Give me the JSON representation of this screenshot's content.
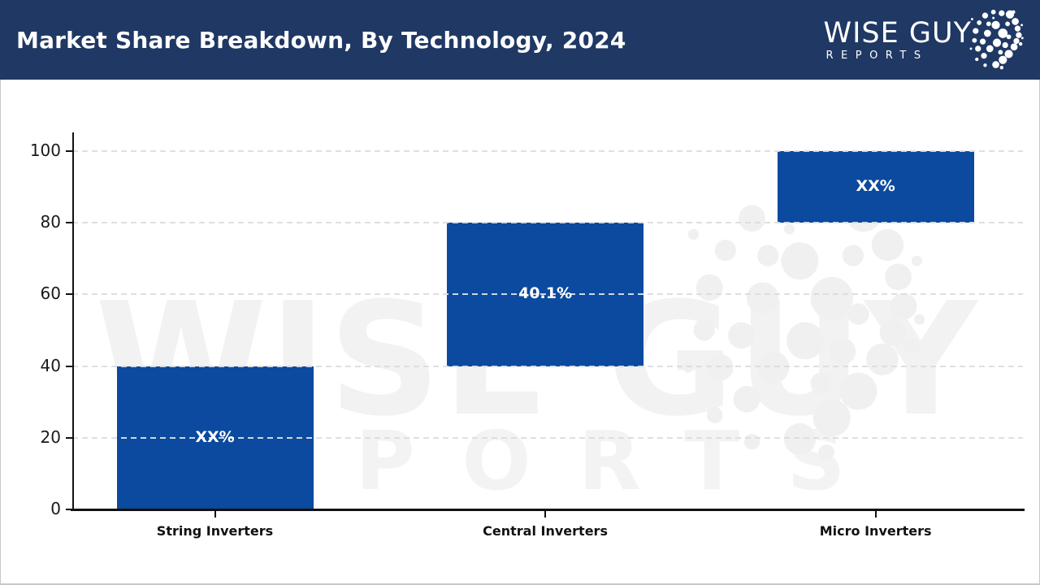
{
  "header": {
    "title": "Market Share Breakdown, By Technology, 2024",
    "bg_color": "#1f3864",
    "logo": {
      "brand_top": "WISE GUY",
      "brand_bottom": "REPORTS"
    }
  },
  "watermark": {
    "brand_top": "WISE GUY",
    "brand_bottom": "REPORTS"
  },
  "chart_data": {
    "type": "bar",
    "variant": "stacked-waterfall-segments",
    "title": "Market Share Breakdown, By Technology, 2024",
    "categories": [
      "String Inverters",
      "Central Inverters",
      "Micro Inverters"
    ],
    "segments": [
      {
        "category": "String Inverters",
        "start": 0,
        "end": 40,
        "label": "XX%"
      },
      {
        "category": "Central Inverters",
        "start": 40,
        "end": 80.1,
        "label": "40.1%"
      },
      {
        "category": "Micro Inverters",
        "start": 80.1,
        "end": 100,
        "label": "XX%"
      }
    ],
    "yticks": [
      0,
      20,
      40,
      60,
      80,
      100
    ],
    "ylim": [
      0,
      105
    ],
    "xlabel": "",
    "ylabel": "",
    "bar_color": "#0b4a9e",
    "bar_label_color": "#ffffff",
    "grid": "horizontal-dashed",
    "legend": "none"
  }
}
